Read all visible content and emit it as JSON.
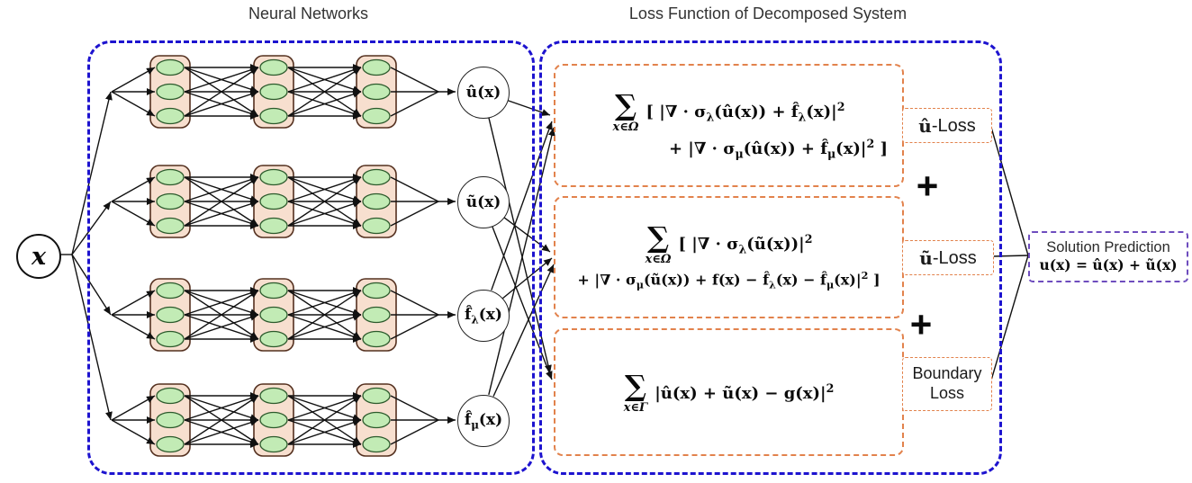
{
  "titles": {
    "networks": "Neural Networks",
    "loss": "Loss Function of Decomposed System"
  },
  "input_node": {
    "label": "x"
  },
  "network": {
    "count": 4,
    "layers": 3,
    "nodes_per_layer": 3
  },
  "output_nodes": [
    {
      "label": "û(x)"
    },
    {
      "label": "ũ(x)"
    },
    {
      "label": "f̂_λ(x)"
    },
    {
      "label": "f̂_μ(x)"
    }
  ],
  "loss_terms": [
    {
      "sum": "∑",
      "under": "x∈Ω",
      "line1": "[ |∇ · σ_λ(û(x)) + f̂_λ(x)|^2",
      "line2": "+ |∇ · σ_μ(û(x)) + f̂_μ(x)|^2 ]"
    },
    {
      "sum": "∑",
      "under": "x∈Ω",
      "line1": "[ |∇ · σ_λ(ũ(x))|^2",
      "line2": "+ |∇ · σ_μ(ũ(x)) + f(x) − f̂_λ(x) − f̂_μ(x)|^2 ]"
    },
    {
      "sum": "∑",
      "under": "x∈Γ",
      "line1": "|û(x) + ũ(x) − g(x)|^2",
      "line2": ""
    }
  ],
  "loss_labels": [
    {
      "math": "û",
      "text": "-Loss"
    },
    {
      "math": "ũ",
      "text": "-Loss"
    },
    {
      "math": "",
      "text": "Boundary Loss"
    }
  ],
  "plus_sign": "+",
  "solution": {
    "title": "Solution Prediction",
    "formula": "u(x) = û(x) + ũ(x)"
  },
  "connections": {
    "loss_inputs": [
      [
        0,
        2,
        3
      ],
      [
        1,
        2,
        3
      ],
      [
        0,
        1
      ]
    ]
  },
  "colors": {
    "blue_box": "#1d13cf",
    "orange_box": "#e2824c",
    "purple_box": "#6e4dbe",
    "layer_fill": "#f7dfcf",
    "layer_border": "#54301f",
    "node_fill": "#c2ebb5",
    "node_border": "#2c5a2c",
    "wire": "#111111",
    "text": "#333333"
  }
}
